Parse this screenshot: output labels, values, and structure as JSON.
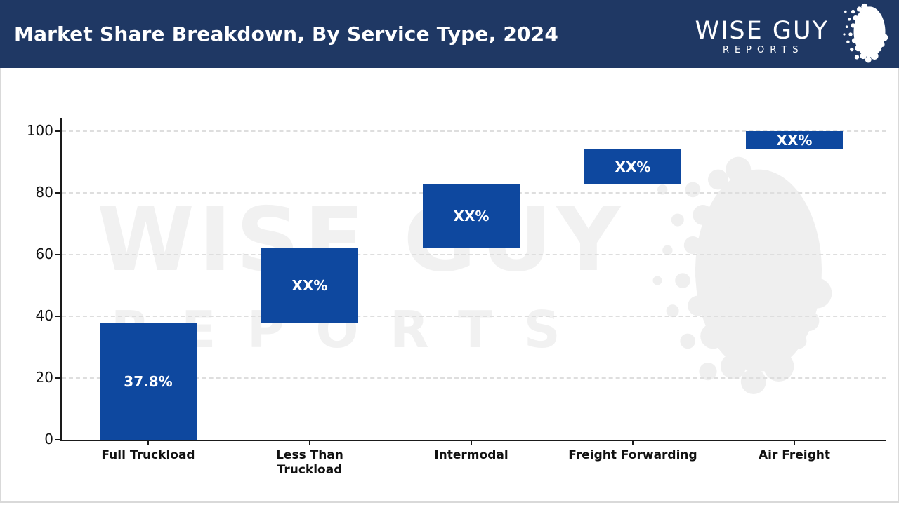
{
  "header": {
    "title": "Market Share Breakdown, By Service Type, 2024",
    "bg_color": "#1f3864",
    "brand": {
      "line1": "WISE GUY",
      "line2": "REPORTS"
    }
  },
  "watermark": {
    "line1": "WISE GUY",
    "line2": "REPORTS"
  },
  "chart_data": {
    "type": "bar",
    "subtype": "waterfall",
    "title": "Market Share Breakdown, By Service Type, 2024",
    "categories": [
      "Full Truckload",
      "Less Than\nTruckload",
      "Intermodal",
      "Freight Forwarding",
      "Air Freight"
    ],
    "segments": [
      {
        "category": "Full Truckload",
        "start": 0,
        "end": 37.8,
        "label": "37.8%"
      },
      {
        "category": "Less Than Truckload",
        "start": 37.8,
        "end": 62,
        "label": "XX%"
      },
      {
        "category": "Intermodal",
        "start": 62,
        "end": 83,
        "label": "XX%"
      },
      {
        "category": "Freight Forwarding",
        "start": 83,
        "end": 94,
        "label": "XX%"
      },
      {
        "category": "Air Freight",
        "start": 94,
        "end": 100,
        "label": "XX%"
      }
    ],
    "y_ticks": [
      0,
      20,
      40,
      60,
      80,
      100
    ],
    "ylim": [
      0,
      100
    ],
    "xlabel": "",
    "ylabel": "",
    "bar_color": "#0e489f",
    "label_color": "#ffffff",
    "grid": "dashed-horizontal",
    "legend": "none"
  }
}
